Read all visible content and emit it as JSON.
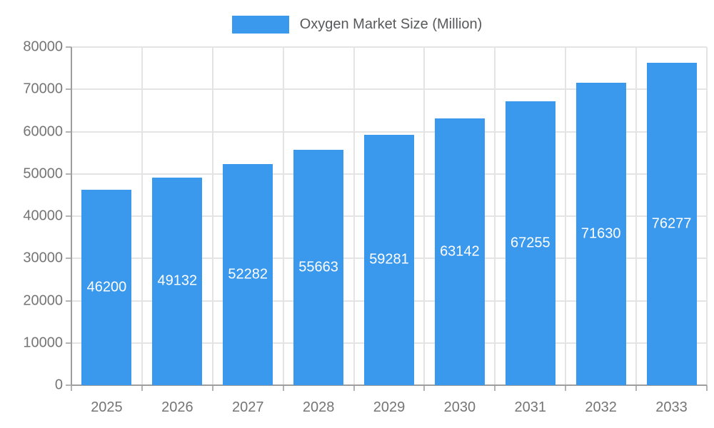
{
  "chart_data": {
    "type": "bar",
    "title": "Oxygen Market Size (Million)",
    "categories": [
      "2025",
      "2026",
      "2027",
      "2028",
      "2029",
      "2030",
      "2031",
      "2032",
      "2033"
    ],
    "series": [
      {
        "name": "Oxygen Market Size (Million)",
        "values": [
          46200,
          49132,
          52282,
          55663,
          59281,
          63142,
          67255,
          71630,
          76277
        ]
      }
    ],
    "value_labels_shown": true,
    "xlabel": "",
    "ylabel": "",
    "ylim": [
      0,
      80000
    ],
    "yticks": [
      0,
      10000,
      20000,
      30000,
      40000,
      50000,
      60000,
      70000,
      80000
    ],
    "grid": "horizontal and vertical",
    "legend_position": "top-center"
  },
  "legend": {
    "label": "Oxygen Market Size (Million)",
    "swatch_icon": "blue-rect-swatch"
  },
  "colors": {
    "bar": "#3A99EC",
    "gridline": "#e4e4e4",
    "axis_line": "#9e9e9e",
    "tick_mark": "#b3b3b3",
    "axis_label_text": "#757575",
    "legend_text": "#58595b",
    "value_label_text": "#ffffff",
    "background": "#ffffff"
  }
}
